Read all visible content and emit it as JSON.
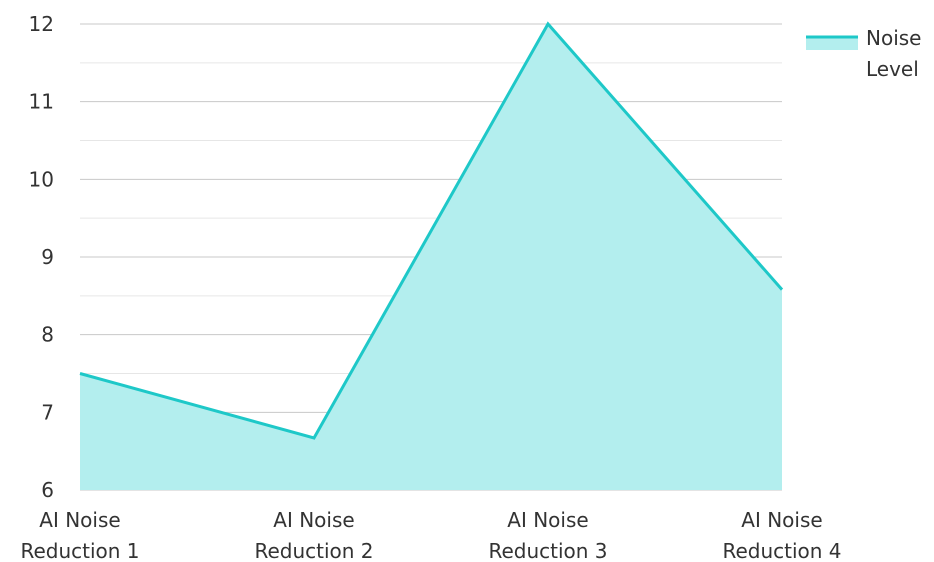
{
  "chart_data": {
    "type": "area",
    "categories": [
      [
        "AI Noise",
        "Reduction 1"
      ],
      [
        "AI Noise",
        "Reduction 2"
      ],
      [
        "AI Noise",
        "Reduction 3"
      ],
      [
        "AI Noise",
        "Reduction 4"
      ]
    ],
    "series": [
      {
        "name": [
          "Noise",
          "Level"
        ],
        "values": [
          7.5,
          6.67,
          12.0,
          8.58
        ]
      }
    ],
    "ylim": [
      6,
      12
    ],
    "yticks": [
      "6",
      "7",
      "8",
      "9",
      "10",
      "11",
      "12"
    ],
    "grid": true,
    "legend_position": "top-right",
    "colors": {
      "line": "#1ec8c8",
      "fill": "#b3eeee",
      "grid_major": "#c8c8c8",
      "grid_minor": "#e6e6e6"
    }
  }
}
